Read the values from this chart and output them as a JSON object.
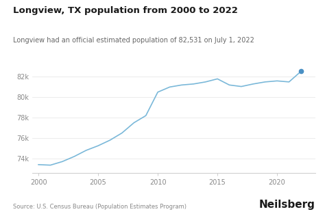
{
  "title": "Longview, TX population from 2000 to 2022",
  "subtitle": "Longview had an official estimated population of 82,531 on July 1, 2022",
  "source": "Source: U.S. Census Bureau (Population Estimates Program)",
  "brand": "Neilsberg",
  "years": [
    2000,
    2001,
    2002,
    2003,
    2004,
    2005,
    2006,
    2007,
    2008,
    2009,
    2010,
    2011,
    2012,
    2013,
    2014,
    2015,
    2016,
    2017,
    2018,
    2019,
    2020,
    2021,
    2022
  ],
  "population": [
    73400,
    73350,
    73700,
    74200,
    74800,
    75250,
    75800,
    76500,
    77500,
    78200,
    80500,
    81000,
    81200,
    81300,
    81500,
    81800,
    81200,
    81050,
    81300,
    81500,
    81600,
    81500,
    82531
  ],
  "line_color": "#7ab8d9",
  "dot_color": "#4a90c4",
  "bg_color": "#ffffff",
  "title_fontsize": 9.5,
  "subtitle_fontsize": 7,
  "source_fontsize": 6,
  "brand_fontsize": 11,
  "ytick_labels": [
    "74k",
    "76k",
    "78k",
    "80k",
    "82k"
  ],
  "ytick_values": [
    74000,
    76000,
    78000,
    80000,
    82000
  ],
  "xlim": [
    1999.5,
    2023.2
  ],
  "ylim": [
    72600,
    83600
  ],
  "xticks": [
    2000,
    2005,
    2010,
    2015,
    2020
  ],
  "grid_color": "#e8e8e8",
  "axis_color": "#cccccc",
  "tick_color": "#888888"
}
